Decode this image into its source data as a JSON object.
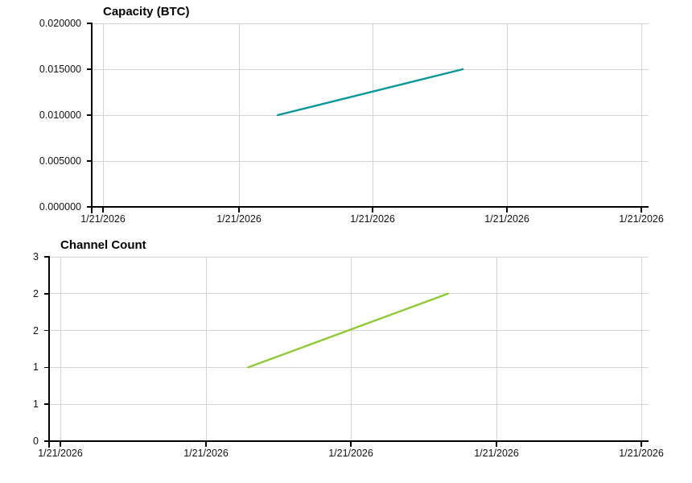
{
  "page": {
    "background": "#ffffff"
  },
  "colors": {
    "grid": "#d4d4d4",
    "axis": "#000000",
    "text": "#111111",
    "capacity_line": "#0a9798",
    "channel_line": "#8fc935"
  },
  "chart_data": [
    {
      "type": "line",
      "title": "Capacity (BTC)",
      "xlabel": "",
      "ylabel": "",
      "ylim": [
        0,
        0.02
      ],
      "grid": true,
      "legend": "none",
      "markers": false,
      "y_ticks": [
        {
          "value": 0.02,
          "label": "0.020000"
        },
        {
          "value": 0.015,
          "label": "0.015000"
        },
        {
          "value": 0.01,
          "label": "0.010000"
        },
        {
          "value": 0.005,
          "label": "0.005000"
        },
        {
          "value": 0,
          "label": "0.000000"
        }
      ],
      "x_tick_labels": [
        "1/21/2026",
        "1/21/2026",
        "1/21/2026",
        "1/21/2026",
        "1/21/2026"
      ],
      "series": [
        {
          "name": "Capacity (BTC)",
          "color": "#0a9798",
          "values": [
            0.01,
            0.015
          ],
          "x_fractions": [
            0.333,
            0.666
          ]
        }
      ]
    },
    {
      "type": "line",
      "title": "Channel Count",
      "xlabel": "",
      "ylabel": "",
      "ylim": [
        0,
        2.5
      ],
      "grid": true,
      "legend": "none",
      "markers": false,
      "y_ticks": [
        {
          "value": 2.5,
          "label": "3"
        },
        {
          "value": 2,
          "label": "2"
        },
        {
          "value": 1.5,
          "label": "2"
        },
        {
          "value": 1,
          "label": "1"
        },
        {
          "value": 0.5,
          "label": "1"
        },
        {
          "value": 0,
          "label": "0"
        }
      ],
      "x_tick_labels": [
        "1/21/2026",
        "1/21/2026",
        "1/21/2026",
        "1/21/2026",
        "1/21/2026"
      ],
      "series": [
        {
          "name": "Channel Count",
          "color": "#8fc935",
          "values": [
            1,
            2
          ],
          "x_fractions": [
            0.331,
            0.665
          ]
        }
      ]
    }
  ]
}
